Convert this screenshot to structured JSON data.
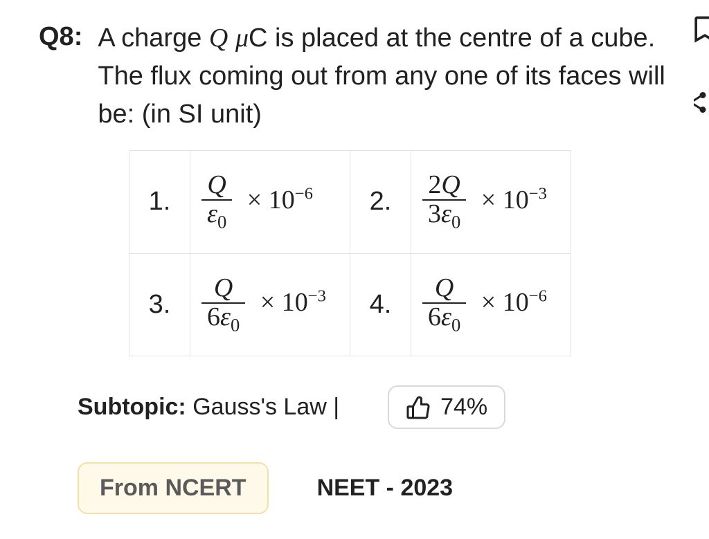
{
  "question": {
    "label": "Q8:",
    "text_html": "A charge <span class='math-it'>Q</span> <span class='math-it'>μ</span>C is placed at the centre of a cube. The flux coming out from any one of its faces will be: (in SI unit)"
  },
  "options": [
    {
      "n": "1.",
      "frac_top": "<span class='it'>Q</span>",
      "frac_bot": "<span class='it'>ε</span><span class='sub'>0</span>",
      "tail": " × 10<span class='sup'>−6</span>"
    },
    {
      "n": "2.",
      "frac_top": "2<span class='it'>Q</span>",
      "frac_bot": "3<span class='it'>ε</span><span class='sub'>0</span>",
      "tail": " × 10<span class='sup'>−3</span>"
    },
    {
      "n": "3.",
      "frac_top": "<span class='it'>Q</span>",
      "frac_bot": "6<span class='it'>ε</span><span class='sub'>0</span>",
      "tail": " × 10<span class='sup'>−3</span>"
    },
    {
      "n": "4.",
      "frac_top": "<span class='it'>Q</span>",
      "frac_bot": "6<span class='it'>ε</span><span class='sub'>0</span>",
      "tail": " × 10<span class='sup'>−6</span>"
    }
  ],
  "subtopic": {
    "label": "Subtopic:",
    "value": "Gauss's Law |"
  },
  "like": {
    "percent": "74%"
  },
  "source": {
    "ncert": "From NCERT",
    "exam": "NEET - 2023"
  },
  "colors": {
    "border": "#e3e3e3",
    "pill_border": "#d9d9d9",
    "ncert_bg": "#fff9e9",
    "ncert_border": "#f2e0a8",
    "text": "#212121"
  }
}
